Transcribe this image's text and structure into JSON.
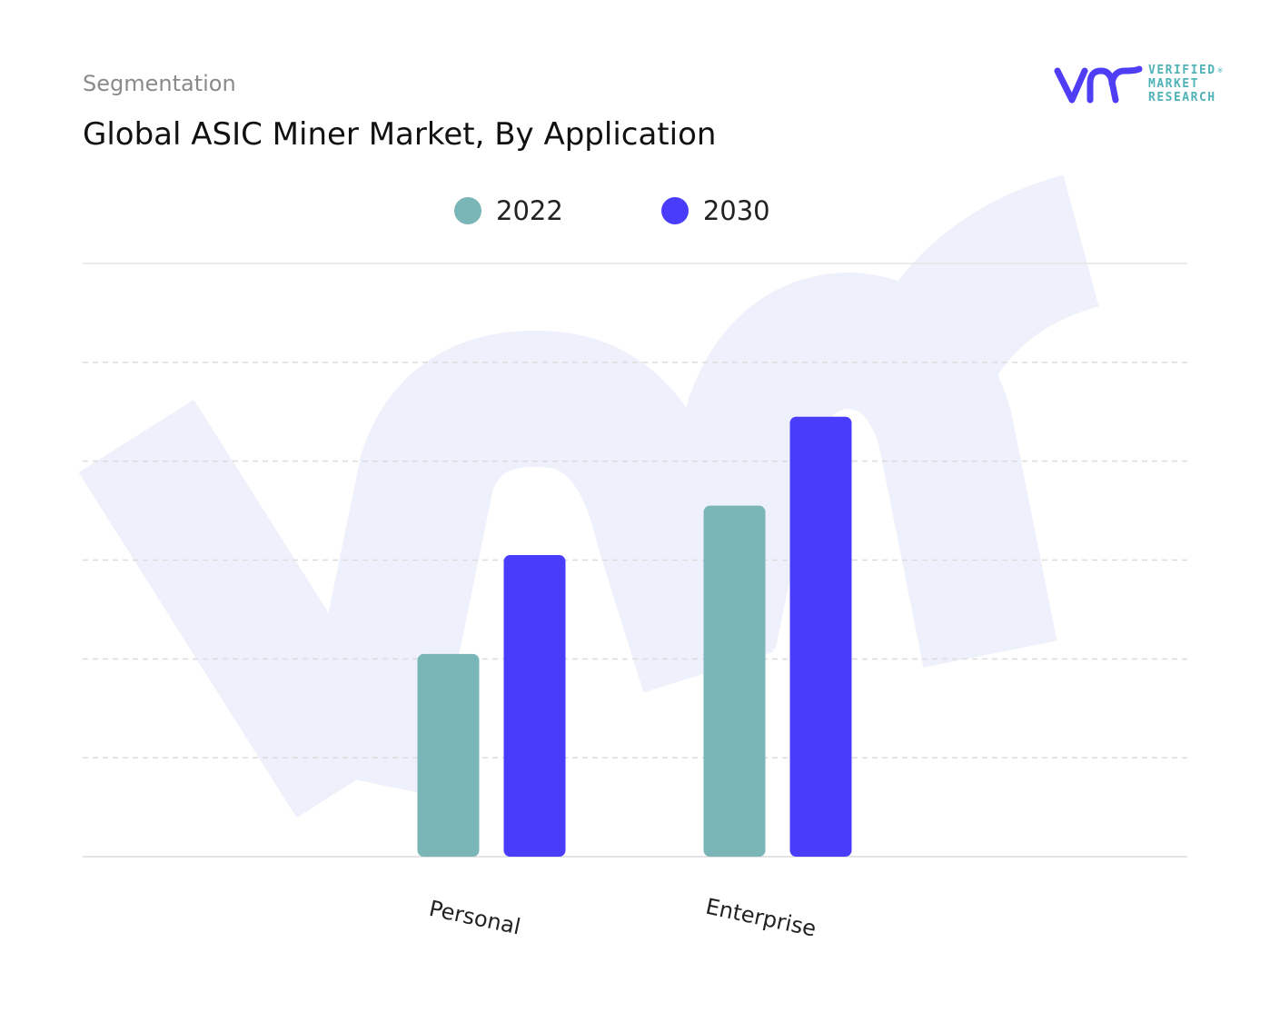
{
  "header": {
    "segment_label": "Segmentation",
    "title": "Global ASIC Miner Market, By Application"
  },
  "brand": {
    "logo_line1": "VERIFIED",
    "logo_line2": "MARKET",
    "logo_line3": "RESEARCH",
    "registered": "®",
    "primary_color": "#4f3ef5",
    "accent_color": "#4fb3b8",
    "logo_icon": "vmr-logo-icon"
  },
  "chart_data": {
    "type": "bar",
    "title": "Global ASIC Miner Market, By Application",
    "categories": [
      "Personal",
      "Enterprise"
    ],
    "series": [
      {
        "name": "2022",
        "color": "#7ab5b7",
        "values": [
          41,
          71
        ]
      },
      {
        "name": "2030",
        "color": "#4a3cfb",
        "values": [
          61,
          89
        ]
      }
    ],
    "xlabel": "",
    "ylabel": "",
    "ylim": [
      0,
      120
    ],
    "grid": true,
    "legend": "top-center"
  }
}
